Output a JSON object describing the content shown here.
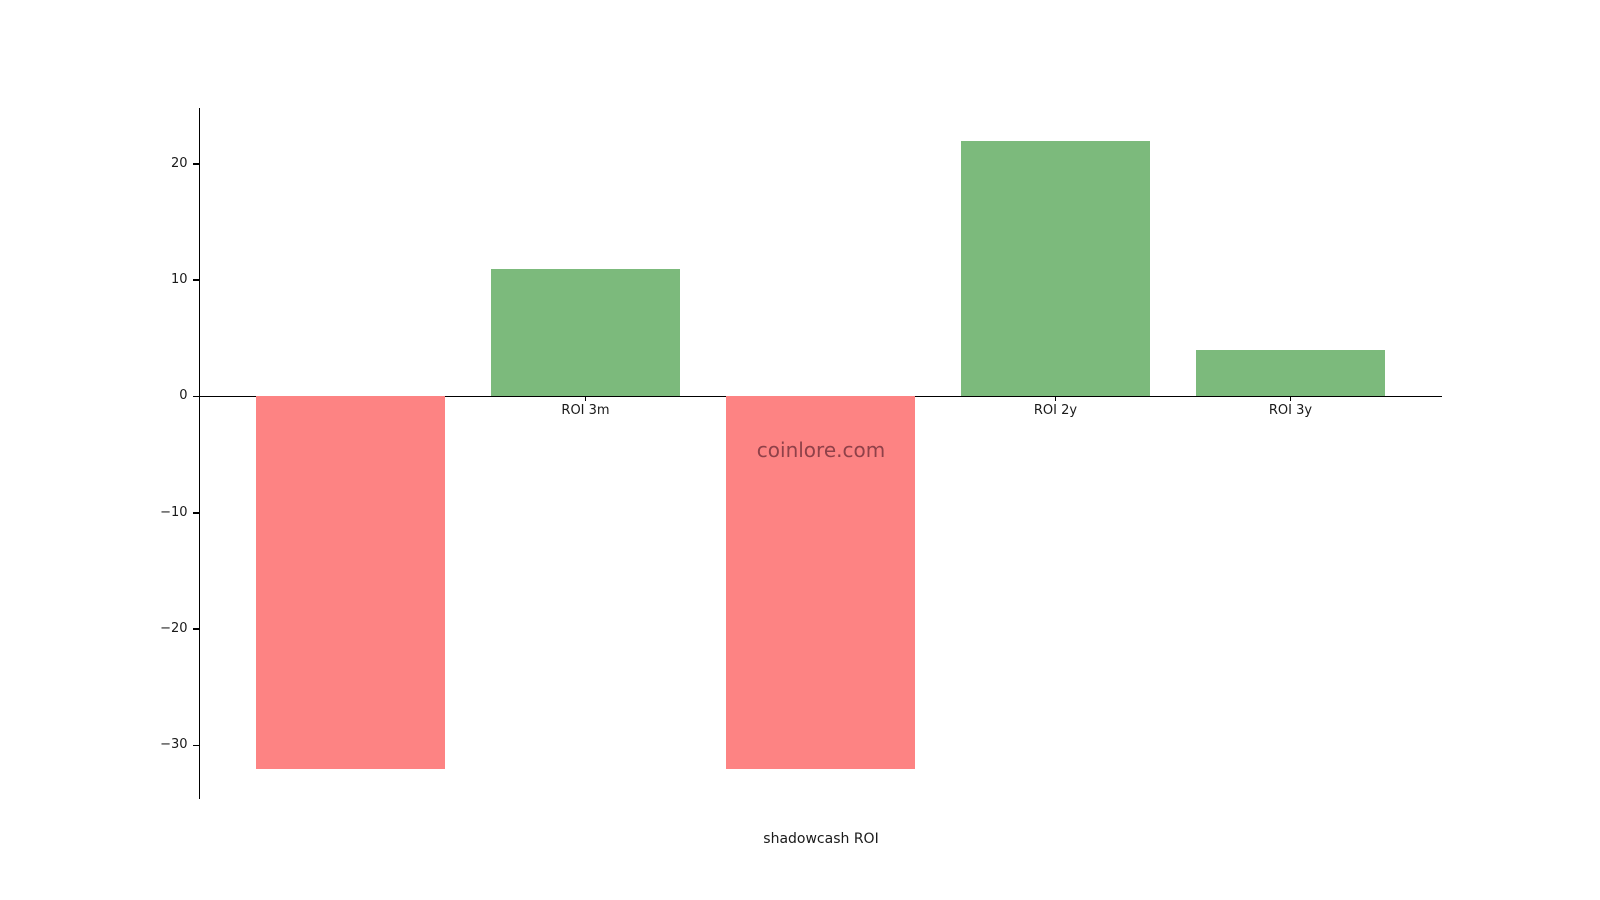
{
  "page": {
    "background": "#ffffff"
  },
  "watermark": {
    "text": "coinlore.com",
    "color": "#8F4149"
  },
  "chart_data": {
    "type": "bar",
    "title": "",
    "xlabel": "shadowcash ROI",
    "ylabel": "",
    "categories": [
      "",
      "ROI 3m",
      "",
      "ROI 2y",
      "ROI 3y"
    ],
    "values": [
      -32,
      11,
      -32,
      22,
      4
    ],
    "positive_color": "#7cba7c",
    "negative_color": "#fd8383",
    "axis_color": "#000000",
    "tick_label_color": "#1a1a1a",
    "y_ticks": [
      20,
      10,
      0,
      -10,
      -20,
      -30
    ],
    "ylim": [
      -34.6,
      24.8
    ],
    "grid": false,
    "legend_position": "none"
  }
}
